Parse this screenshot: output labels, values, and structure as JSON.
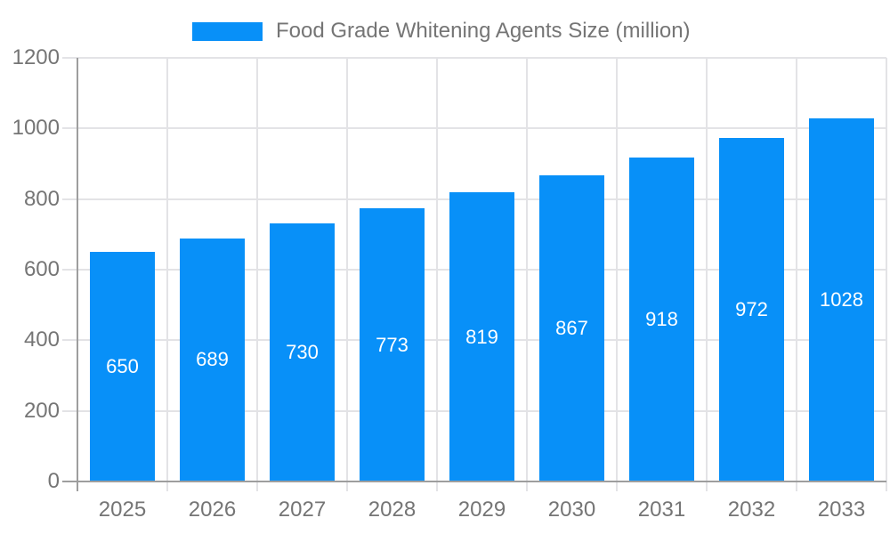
{
  "chart_data": {
    "type": "bar",
    "title": "Food Grade Whitening Agents Size (million)",
    "legend_entries": [
      "Food Grade Whitening Agents Size (million)"
    ],
    "legend_position": "top",
    "categories": [
      "2025",
      "2026",
      "2027",
      "2028",
      "2029",
      "2030",
      "2031",
      "2032",
      "2033"
    ],
    "values": [
      650,
      689,
      730,
      773,
      819,
      867,
      918,
      972,
      1028
    ],
    "xlabel": "",
    "ylabel": "",
    "ylim": [
      0,
      1200
    ],
    "ytick_step": 200,
    "yticks": [
      0,
      200,
      400,
      600,
      800,
      1000,
      1200
    ],
    "grid": true,
    "value_labels": "inside-center",
    "colors": {
      "bar": "#0890f8",
      "value_label_text": "#ffffff",
      "tick_label_text": "#757575",
      "legend_text": "#757575",
      "grid_line": "#e3e3e6",
      "axis_line": "#9e9e9e",
      "background": "#ffffff"
    }
  }
}
